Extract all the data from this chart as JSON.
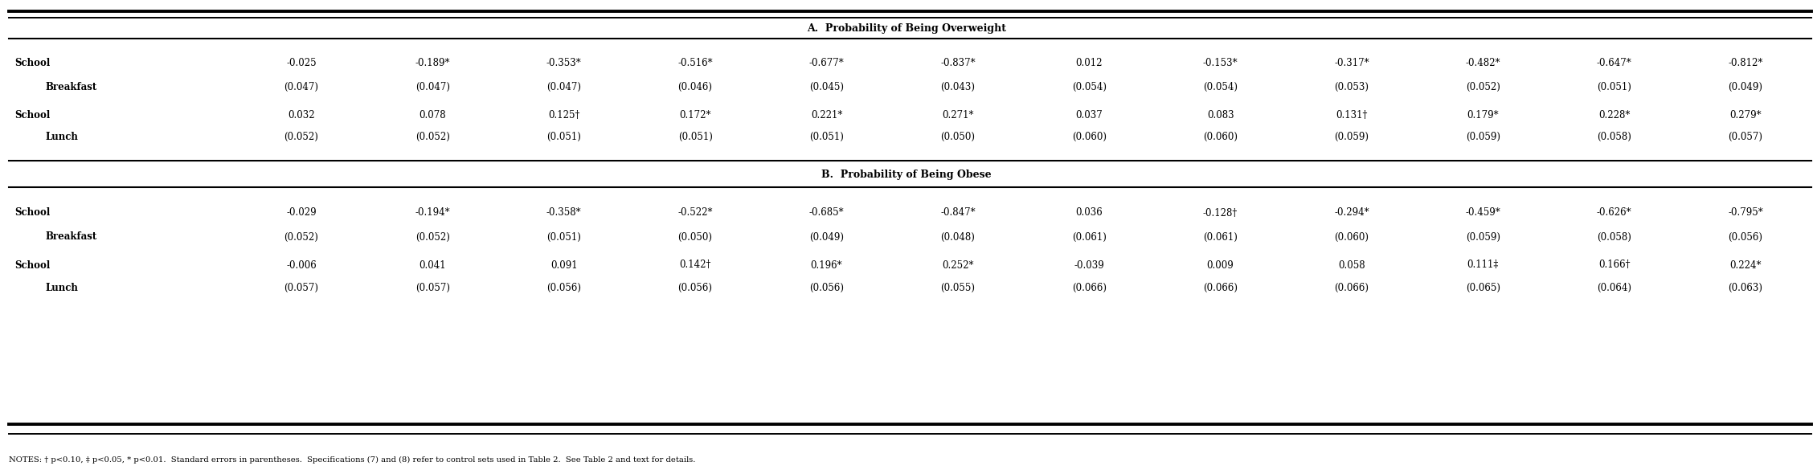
{
  "title_a": "A.  Probability of Being Overweight",
  "title_b": "B.  Probability of Being Obese",
  "row_labels_a": [
    "School\nBreakfast",
    "School\nLunch"
  ],
  "row_labels_b": [
    "School\nBreakfast",
    "School\nLunch"
  ],
  "row_labels_flat": [
    "School",
    "Breakfast",
    "School",
    "Lunch"
  ],
  "section_a": [
    [
      "-0.025",
      "-0.189*",
      "-0.353*",
      "-0.516*",
      "-0.677*",
      "-0.837*",
      "0.012",
      "-0.153*",
      "-0.317*",
      "-0.482*",
      "-0.647*",
      "-0.812*"
    ],
    [
      "(0.047)",
      "(0.047)",
      "(0.047)",
      "(0.046)",
      "(0.045)",
      "(0.043)",
      "(0.054)",
      "(0.054)",
      "(0.053)",
      "(0.052)",
      "(0.051)",
      "(0.049)"
    ],
    [
      "0.032",
      "0.078",
      "0.125†",
      "0.172*",
      "0.221*",
      "0.271*",
      "0.037",
      "0.083",
      "0.131†",
      "0.179*",
      "0.228*",
      "0.279*"
    ],
    [
      "(0.052)",
      "(0.052)",
      "(0.051)",
      "(0.051)",
      "(0.051)",
      "(0.050)",
      "(0.060)",
      "(0.060)",
      "(0.059)",
      "(0.059)",
      "(0.058)",
      "(0.057)"
    ]
  ],
  "section_b": [
    [
      "-0.029",
      "-0.194*",
      "-0.358*",
      "-0.522*",
      "-0.685*",
      "-0.847*",
      "0.036",
      "-0.128†",
      "-0.294*",
      "-0.459*",
      "-0.626*",
      "-0.795*"
    ],
    [
      "(0.052)",
      "(0.052)",
      "(0.051)",
      "(0.050)",
      "(0.049)",
      "(0.048)",
      "(0.061)",
      "(0.061)",
      "(0.060)",
      "(0.059)",
      "(0.058)",
      "(0.056)"
    ],
    [
      "-0.006",
      "0.041",
      "0.091",
      "0.142†",
      "0.196*",
      "0.252*",
      "-0.039",
      "0.009",
      "0.058",
      "0.111‡",
      "0.166†",
      "0.224*"
    ],
    [
      "(0.057)",
      "(0.057)",
      "(0.056)",
      "(0.056)",
      "(0.056)",
      "(0.055)",
      "(0.066)",
      "(0.066)",
      "(0.066)",
      "(0.065)",
      "(0.064)",
      "(0.063)"
    ]
  ],
  "note": "NOTES: † p<0.10, ‡ p<0.05, * p<0.01.  Standard errors in parentheses.  Specifications (7) and (8) refer to control sets used in Table 2.  See Table 2 and text for details.",
  "background": "#ffffff",
  "text_color": "#000000",
  "label_indent_main": 0.005,
  "label_indent_sub": 0.022
}
